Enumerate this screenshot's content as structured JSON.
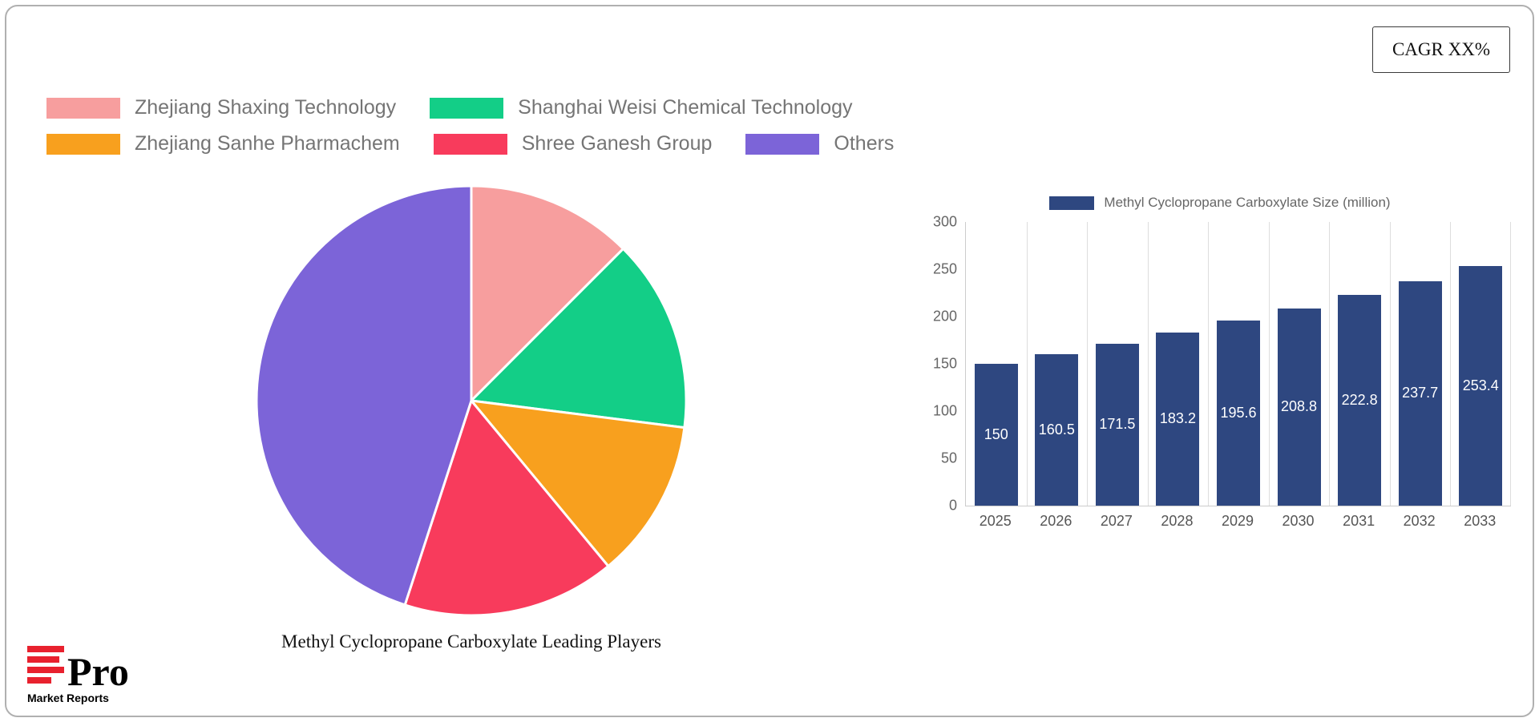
{
  "page": {
    "cagr_label": "CAGR XX%"
  },
  "logo": {
    "name": "Pro",
    "subtitle": "Market Reports",
    "accent_color": "#e8212e"
  },
  "chart_data": [
    {
      "type": "pie",
      "title": "Methyl Cyclopropane Carboxylate Leading Players",
      "labels": [
        "Zhejiang Shaxing Technology",
        "Shanghai Weisi Chemical Technology",
        "Zhejiang Sanhe Pharmachem",
        "Shree Ganesh Group",
        "Others"
      ],
      "values": [
        12.5,
        14.5,
        12,
        16,
        45
      ],
      "colors": [
        "#F79E9E",
        "#13CE87",
        "#F8A01E",
        "#F83B5C",
        "#7C64D8"
      ],
      "legend_rows": [
        [
          0,
          1
        ],
        [
          2,
          3,
          4
        ]
      ],
      "legend_position": "top-left",
      "start_angle_deg": 0,
      "direction": "clockwise"
    },
    {
      "type": "bar",
      "legend_label": "Methyl Cyclopropane Carboxylate Size (million)",
      "categories": [
        "2025",
        "2026",
        "2027",
        "2028",
        "2029",
        "2030",
        "2031",
        "2032",
        "2033"
      ],
      "values": [
        150,
        160.5,
        171.5,
        183.2,
        195.6,
        208.8,
        222.8,
        237.7,
        253.4
      ],
      "bar_color": "#2E4780",
      "value_label_color": "#ffffff",
      "ylim": [
        0,
        300
      ],
      "yticks": [
        0,
        50,
        100,
        150,
        200,
        250,
        300
      ],
      "grid": "vertical",
      "legend_position": "top-center"
    }
  ]
}
